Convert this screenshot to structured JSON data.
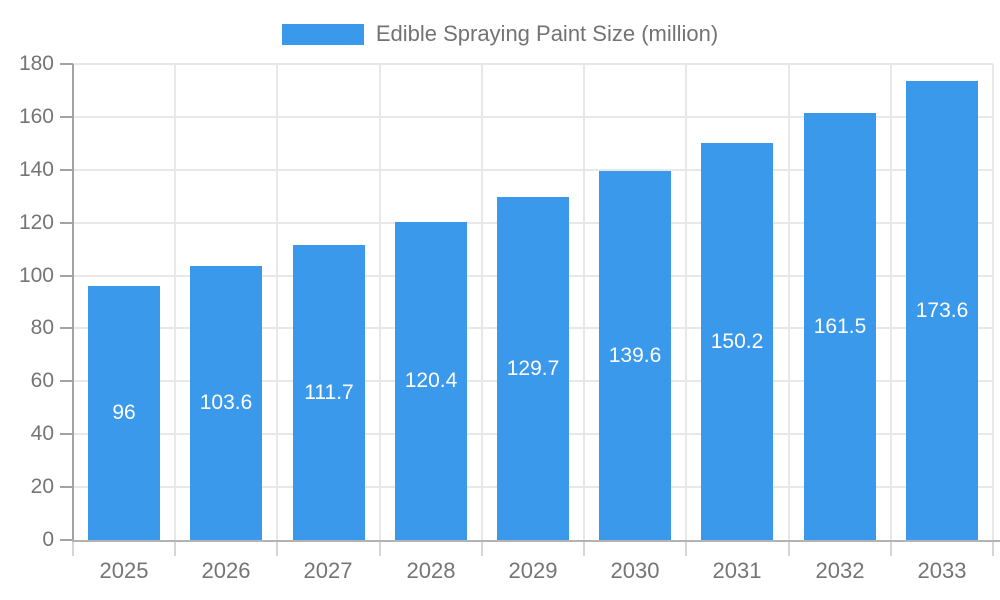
{
  "chart_data": {
    "type": "bar",
    "title": "",
    "legend": "Edible Spraying Paint Size (million)",
    "categories": [
      "2025",
      "2026",
      "2027",
      "2028",
      "2029",
      "2030",
      "2031",
      "2032",
      "2033"
    ],
    "series": [
      {
        "name": "Edible Spraying Paint Size (million)",
        "values": [
          96,
          103.6,
          111.7,
          120.4,
          129.7,
          139.6,
          150.2,
          161.5,
          173.6
        ]
      }
    ],
    "value_labels": [
      "96",
      "103.6",
      "111.7",
      "120.4",
      "129.7",
      "139.6",
      "150.2",
      "161.5",
      "173.6"
    ],
    "xlabel": "",
    "ylabel": "",
    "ylim": [
      0,
      180
    ],
    "yticks": [
      0,
      20,
      40,
      60,
      80,
      100,
      120,
      140,
      160,
      180
    ],
    "grid": true,
    "legend_position": "top",
    "colors": {
      "bar": "#3B99EC",
      "axis": "#a3a3a3",
      "bottom_axis": "#b3b3b3",
      "gridline": "#e8e8e8",
      "x_tick": "#d6d6d6",
      "tick_label": "#757575",
      "value_label": "#ffffff",
      "legend_text": "#737373",
      "background": "#ffffff"
    }
  }
}
